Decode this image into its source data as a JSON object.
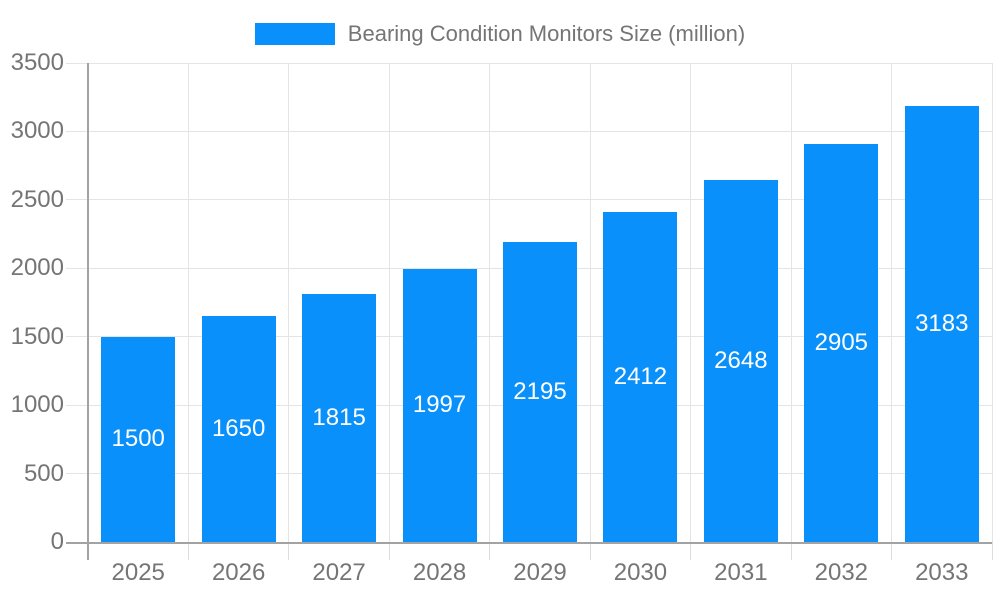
{
  "legend": {
    "label": "Bearing Condition Monitors Size (million)"
  },
  "colors": {
    "bar": "#0a90fa",
    "bar_label_text": "#ffffff",
    "axis_line": "#a3a3a3",
    "gridline": "#e4e4e4",
    "tick_text": "#757575"
  },
  "chart_data": {
    "type": "bar",
    "title": "Bearing Condition Monitors Size (million)",
    "categories": [
      "2025",
      "2026",
      "2027",
      "2028",
      "2029",
      "2030",
      "2031",
      "2032",
      "2033"
    ],
    "values": [
      1500,
      1650,
      1815,
      1997,
      2195,
      2412,
      2648,
      2905,
      3183
    ],
    "xlabel": "",
    "ylabel": "",
    "ylim": [
      0,
      3500
    ],
    "y_ticks": [
      0,
      500,
      1000,
      1500,
      2000,
      2500,
      3000,
      3500
    ],
    "grid": true,
    "legend_position": "top",
    "bar_value_labels": "inside-center"
  }
}
